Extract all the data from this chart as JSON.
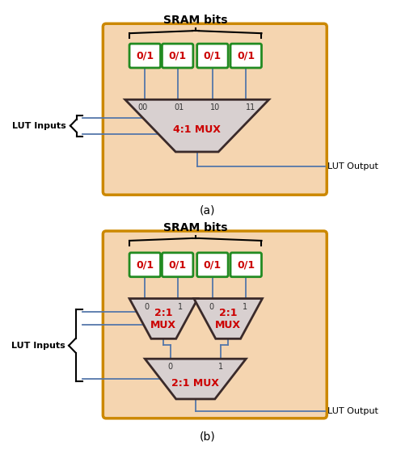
{
  "fig_width": 4.96,
  "fig_height": 5.62,
  "bg_color": "#ffffff",
  "panel_bg": "#f5d5b0",
  "panel_border": "#cc8800",
  "sram_box_bg": "#ffffff",
  "sram_box_border": "#228B22",
  "sram_text_color": "#cc0000",
  "mux_bg": "#d8d0d0",
  "mux_border": "#3a2a2a",
  "mux_text_color": "#cc0000",
  "mux_label_color": "#333333",
  "line_color": "#5577aa",
  "label_color": "#000000",
  "title_color": "#000000",
  "brace_color": "#000000",
  "sram_label": "SRAM bits",
  "lut_input_label": "LUT Inputs",
  "lut_output_label": "LUT Output",
  "caption_a": "(a)",
  "caption_b": "(b)",
  "mux_41_inputs": [
    "00",
    "01",
    "10",
    "11"
  ],
  "sram_values": [
    "0/1",
    "0/1",
    "0/1",
    "0/1"
  ]
}
